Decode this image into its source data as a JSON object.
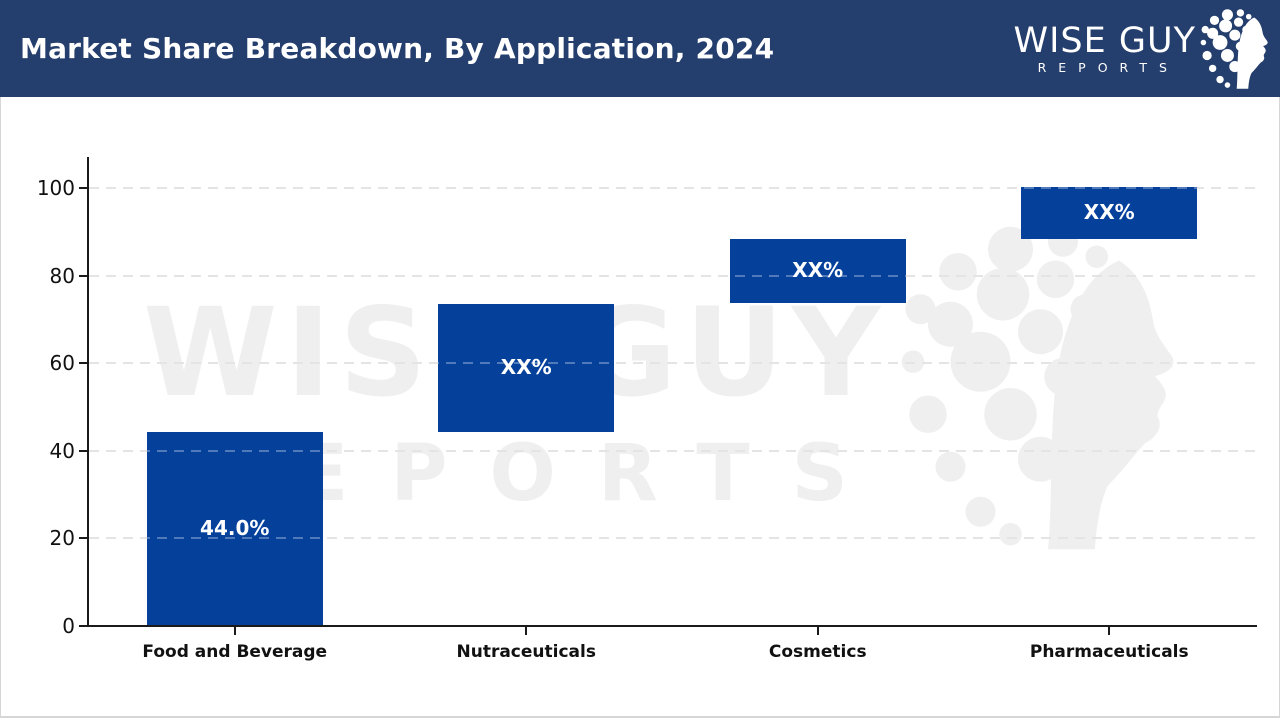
{
  "header": {
    "title": "Market Share Breakdown, By Application, 2024",
    "bg_color": "#243E6D",
    "logo": {
      "line1": "WISE GUY",
      "line2": "REPORTS"
    }
  },
  "watermark": {
    "line1": "WISE GUY",
    "line2": "REPORTS"
  },
  "chart_data": {
    "type": "bar",
    "subtype": "waterfall",
    "title": "Market Share Breakdown, By Application, 2024",
    "categories": [
      "Food and Beverage",
      "Nutraceuticals",
      "Cosmetics",
      "Pharmaceuticals"
    ],
    "segments": [
      {
        "category": "Food and Beverage",
        "start": 0,
        "end": 44.0,
        "size": 44.0,
        "label": "44.0%"
      },
      {
        "category": "Nutraceuticals",
        "start": 44.0,
        "end": 73.4,
        "size": 29.4,
        "label": "XX%"
      },
      {
        "category": "Cosmetics",
        "start": 73.4,
        "end": 88.1,
        "size": 14.7,
        "label": "XX%"
      },
      {
        "category": "Pharmaceuticals",
        "start": 88.1,
        "end": 100.0,
        "size": 11.9,
        "label": "XX%"
      }
    ],
    "xlabel": "",
    "ylabel": "",
    "ylim": [
      0,
      100
    ],
    "yticks": [
      0,
      20,
      40,
      60,
      80,
      100
    ],
    "grid": "horizontal dashed, drawn over bars",
    "legend": "none",
    "bar_color": "#05419B",
    "bar_label_color": "#ffffff",
    "axis_color": "#1a1a1a"
  }
}
